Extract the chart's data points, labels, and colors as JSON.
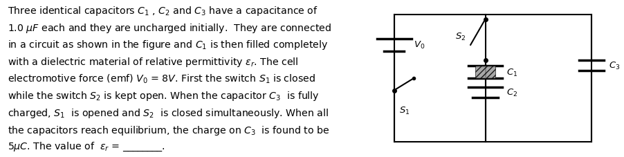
{
  "bg_color": "#ffffff",
  "text_color": "#000000",
  "fig_width": 9.02,
  "fig_height": 2.28,
  "text_fontsize": 10.2,
  "text_linespacing": 1.52,
  "circuit_fontsize": 9.5
}
